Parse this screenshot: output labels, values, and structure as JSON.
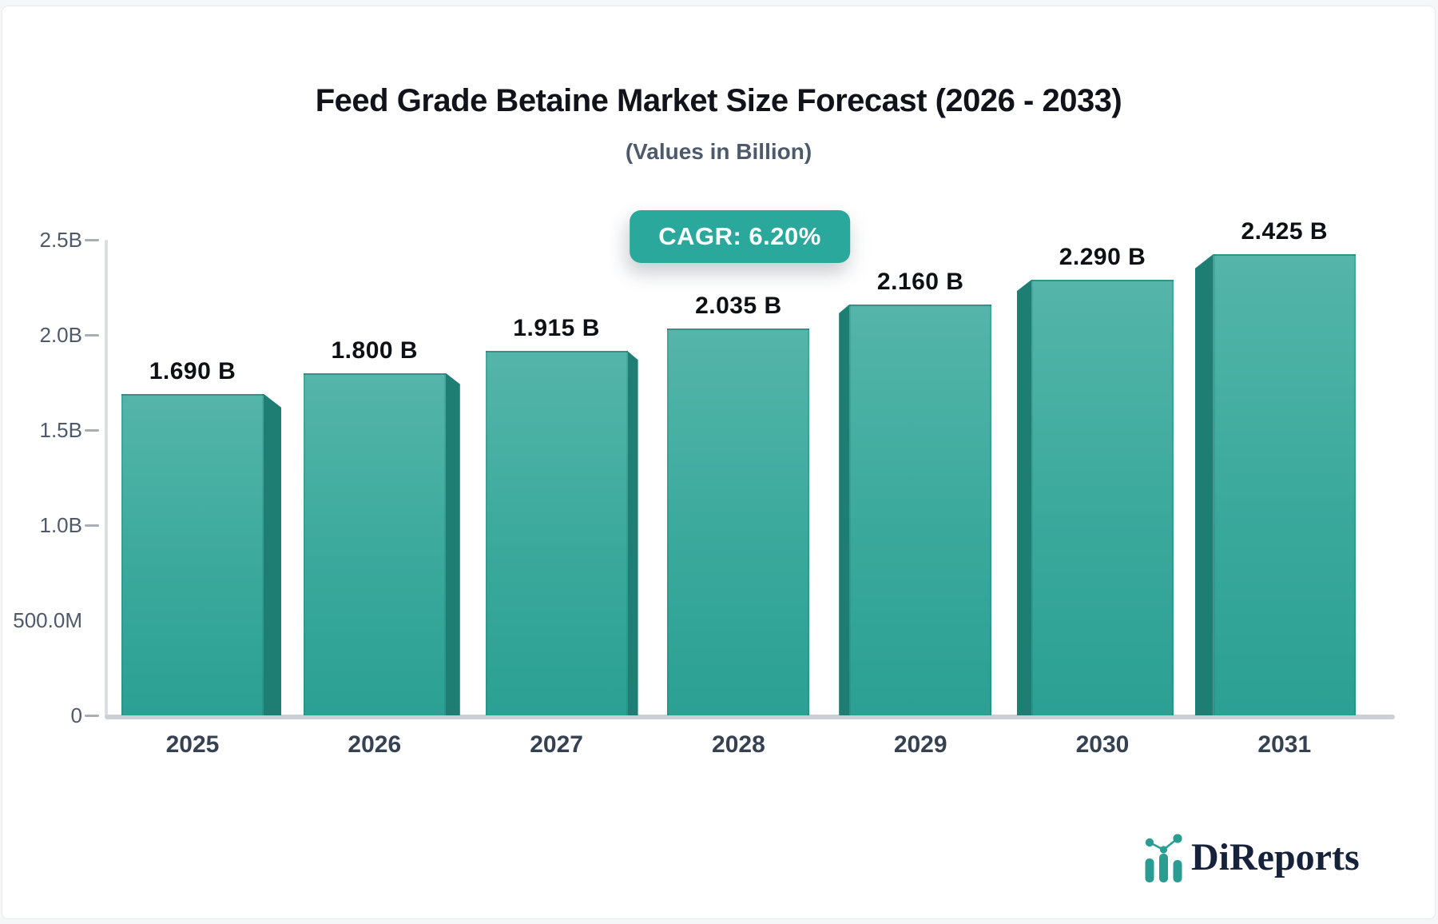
{
  "header": {
    "title": "Feed Grade Betaine Market Size Forecast (2026 - 2033)",
    "subtitle": "(Values in Billion)",
    "cagr_badge": "CAGR: 6.20%"
  },
  "chart_data": {
    "type": "bar",
    "title": "Feed Grade Betaine Market Size Forecast (2026 - 2033)",
    "subtitle": "(Values in Billion)",
    "cagr_label": "CAGR: 6.20%",
    "categories": [
      "2025",
      "2026",
      "2027",
      "2028",
      "2029",
      "2030",
      "2031"
    ],
    "values": [
      1.69,
      1.8,
      1.915,
      2.035,
      2.16,
      2.29,
      2.425
    ],
    "value_labels": [
      "1.690 B",
      "1.800 B",
      "1.915 B",
      "2.035 B",
      "2.160 B",
      "2.290 B",
      "2.425 B"
    ],
    "y_axis": {
      "range": [
        0,
        2.5
      ],
      "ticks": [
        {
          "label": "2.5B",
          "value": 2.5,
          "dash": true
        },
        {
          "label": "2.0B",
          "value": 2.0,
          "dash": true
        },
        {
          "label": "1.5B",
          "value": 1.5,
          "dash": true
        },
        {
          "label": "1.0B",
          "value": 1.0,
          "dash": true
        },
        {
          "label": "500.0M",
          "value": 0.5,
          "dash": false
        },
        {
          "label": "0",
          "value": 0.0,
          "dash": true
        }
      ]
    },
    "legend": null,
    "grid": false,
    "colors": {
      "bar_gradient_top": "#55b5aa",
      "bar_gradient_bottom": "#2ba093",
      "bar_side_face": "#1f7e73",
      "badge_background": "#2aa89b",
      "axis_line": "#ccd0d6",
      "tick_text": "#4e5a6a",
      "category_text": "#364152",
      "value_text": "#0d1014"
    }
  },
  "logo": {
    "text": "DiReports",
    "icon": "bar-line-chart-icon",
    "icon_color": "#2a9d92",
    "text_color": "#16213a"
  }
}
